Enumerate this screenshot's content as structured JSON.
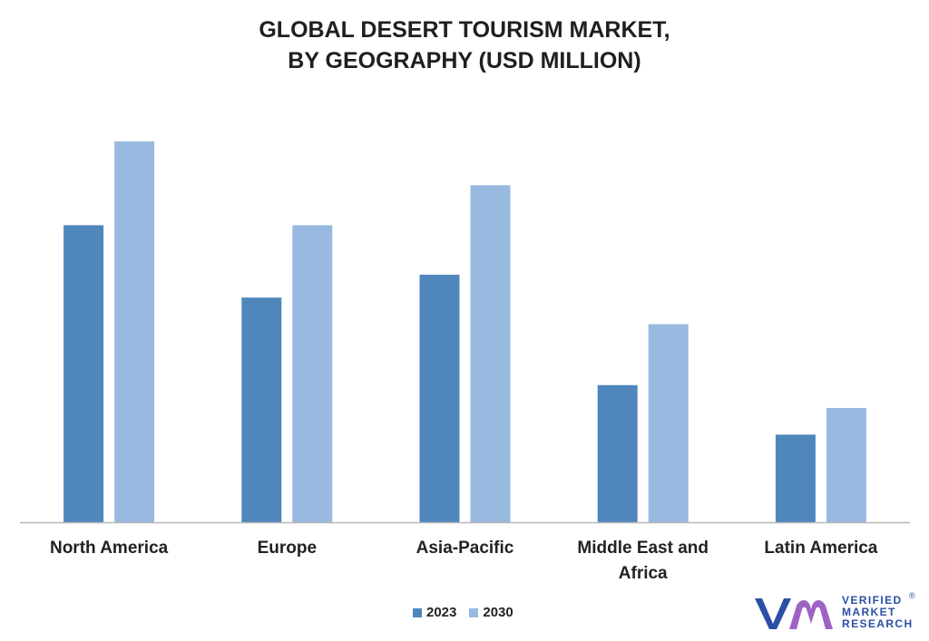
{
  "header": {
    "title_line1": "GLOBAL DESERT TOURISM MARKET,",
    "title_line2": "BY GEOGRAPHY (USD MILLION)"
  },
  "chart_data": {
    "type": "bar",
    "title": "GLOBAL DESERT TOURISM MARKET, BY GEOGRAPHY (USD MILLION)",
    "categories": [
      "North America",
      "Europe",
      "Asia-Pacific",
      "Middle East and Africa",
      "Latin America"
    ],
    "category_label_lines": [
      [
        "North America"
      ],
      [
        "Europe"
      ],
      [
        "Asia-Pacific"
      ],
      [
        "Middle East and",
        "Africa"
      ],
      [
        "Latin America"
      ]
    ],
    "series": [
      {
        "name": "2023",
        "values": [
          78,
          59,
          65,
          36,
          23
        ],
        "color": "#4f87bd"
      },
      {
        "name": "2030",
        "values": [
          100,
          78,
          88.5,
          52,
          30
        ],
        "color": "#98b9e0"
      }
    ],
    "ylim": [
      0,
      100
    ],
    "xlabel": "",
    "ylabel": "",
    "grid": false,
    "axis_color": "#b7b7b7",
    "legend_position": "bottom"
  },
  "legend": {
    "items": [
      {
        "label": "2023",
        "color": "#4f87bd"
      },
      {
        "label": "2030",
        "color": "#98b9e0"
      }
    ]
  },
  "logo": {
    "line1": "VERIFIED",
    "line2": "MARKET",
    "line3": "RESEARCH",
    "registered": "®",
    "icon": "vmr-logo-icon",
    "color_left": "#2b4fa5",
    "color_right": "#9f63c4"
  }
}
